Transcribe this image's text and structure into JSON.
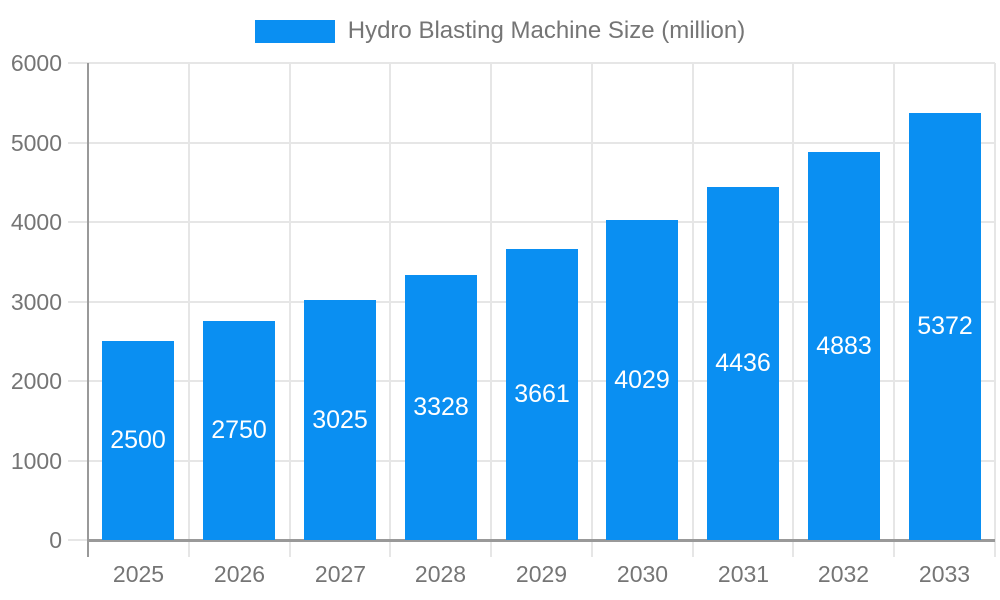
{
  "chart_data": {
    "type": "bar",
    "title": "Hydro Blasting Machine Size (million)",
    "legend": [
      "Hydro Blasting Machine Size (million)"
    ],
    "legend_position": "top-center",
    "categories": [
      "2025",
      "2026",
      "2027",
      "2028",
      "2029",
      "2030",
      "2031",
      "2032",
      "2033"
    ],
    "series": [
      {
        "name": "Hydro Blasting Machine Size (million)",
        "values": [
          2500,
          2750,
          3025,
          3328,
          3661,
          4029,
          4436,
          4883,
          5372
        ]
      }
    ],
    "data_labels_visible": true,
    "xlabel": "",
    "ylabel": "",
    "ylim": [
      0,
      6000
    ],
    "ytick_step": 1000,
    "ytick_labels": [
      "0",
      "1000",
      "2000",
      "3000",
      "4000",
      "5000",
      "6000"
    ],
    "grid": true,
    "colors": {
      "bar": "#0a8ff2",
      "bar_value_text": "#ffffff",
      "axis_text": "#757575",
      "grid_line": "#e6e6e6",
      "tick_line": "#dcdcdc",
      "axis_line": "#999999",
      "background": "#ffffff"
    }
  }
}
